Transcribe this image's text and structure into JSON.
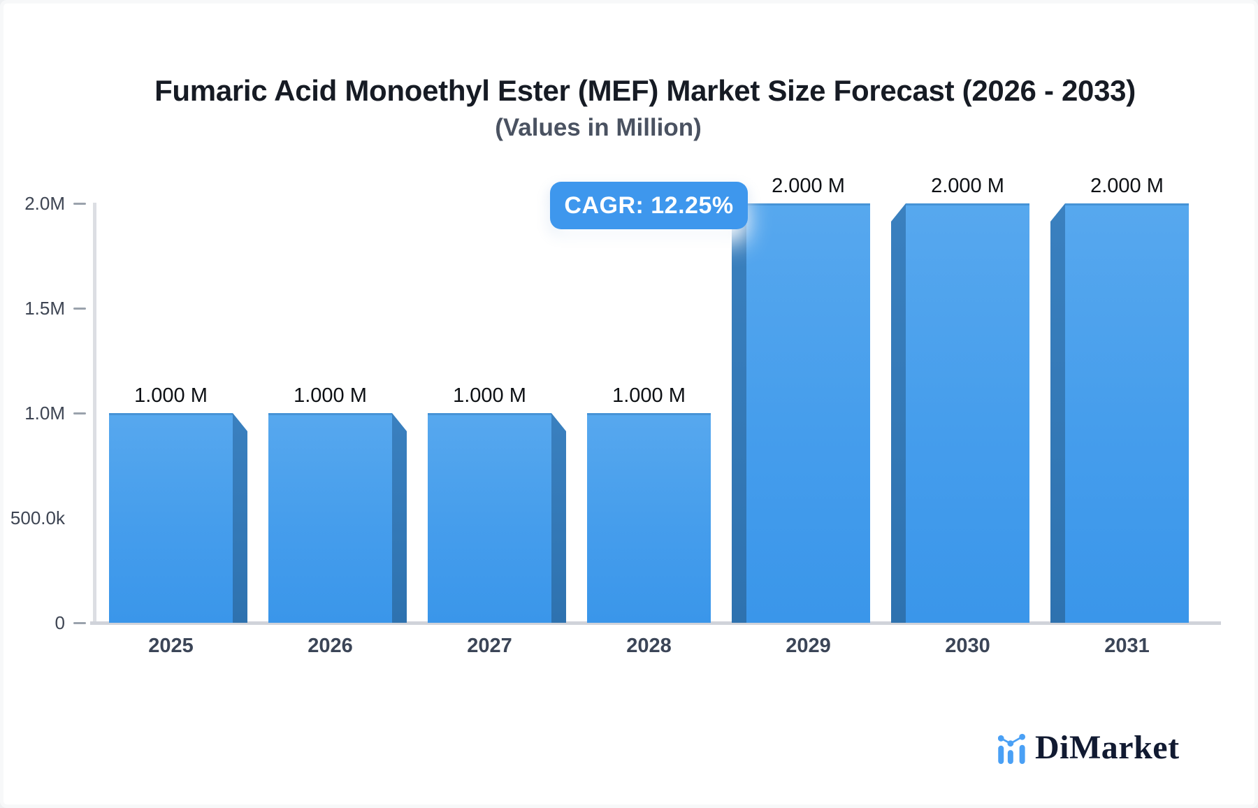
{
  "header": {
    "title": "Fumaric Acid Monoethyl Ester (MEF) Market Size Forecast (2026 - 2033)",
    "subtitle": "(Values in Million)"
  },
  "cagr_badge": {
    "label": "CAGR: 12.25%",
    "background_color": "#3e97ed",
    "text_color": "#ffffff"
  },
  "chart_data": {
    "type": "bar",
    "title": "Fumaric Acid Monoethyl Ester (MEF) Market Size Forecast (2026 - 2033)",
    "subtitle": "(Values in Million)",
    "categories": [
      "2025",
      "2026",
      "2027",
      "2028",
      "2029",
      "2030",
      "2031"
    ],
    "values": [
      1000000,
      1000000,
      1000000,
      1000000,
      2000000,
      2000000,
      2000000
    ],
    "value_labels": [
      "1.000 M",
      "1.000 M",
      "1.000 M",
      "1.000 M",
      "2.000 M",
      "2.000 M",
      "2.000 M"
    ],
    "xlabel": "",
    "ylabel": "",
    "ylim": [
      0,
      2000000
    ],
    "yticks": [
      {
        "label": "2.0M",
        "value": 2000000,
        "dash": true
      },
      {
        "label": "1.5M",
        "value": 1500000,
        "dash": true
      },
      {
        "label": "1.0M",
        "value": 1000000,
        "dash": true
      },
      {
        "label": "500.0k",
        "value": 500000,
        "dash": false
      },
      {
        "label": "0",
        "value": 0,
        "dash": true
      }
    ],
    "grid": false,
    "legend": false,
    "bar_face_color_top": "#57a8ee",
    "bar_face_color_bottom": "#3a96ea",
    "bar_side_color": "#2e72af",
    "axis_color": "#d0d3da"
  },
  "logo": {
    "text": "DiMarket",
    "icon": "mini-bar-line-chart-icon",
    "icon_color": "#4aa0f5",
    "text_color": "#111a31"
  }
}
